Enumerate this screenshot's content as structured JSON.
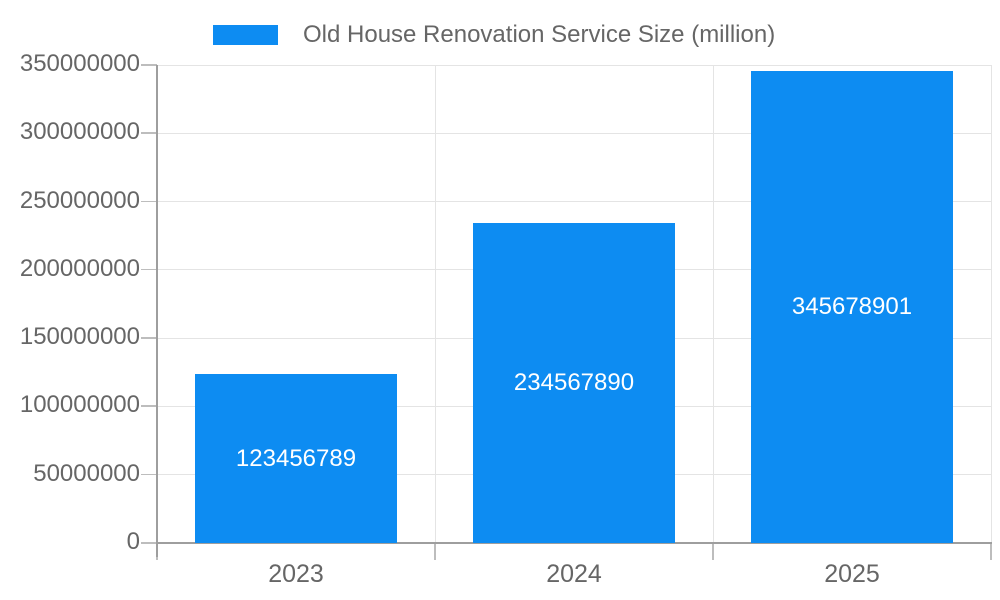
{
  "chart_data": {
    "type": "bar",
    "title": "",
    "legend": {
      "position": "top",
      "label": "Old House Renovation Service Size (million)"
    },
    "categories": [
      "2023",
      "2024",
      "2025"
    ],
    "series": [
      {
        "name": "Old House Renovation Service Size (million)",
        "values": [
          123456789,
          234567890,
          345678901
        ],
        "bar_labels": [
          "123456789",
          "234567890",
          "345678901"
        ]
      }
    ],
    "xlabel": "",
    "ylabel": "",
    "ylim": [
      0,
      350000000
    ],
    "ytick_step": 50000000,
    "ytick_labels": [
      "0",
      "50000000",
      "100000000",
      "150000000",
      "200000000",
      "250000000",
      "300000000",
      "350000000"
    ],
    "grid": true,
    "colors": {
      "bar": "#0D8CF2",
      "bar_label_text": "#ffffff",
      "axis_text": "#666666",
      "legend_text": "#666666",
      "gridline": "#e4e4e4",
      "axis_line": "#9e9e9e",
      "tick": "#bdbdbd",
      "background": "#ffffff"
    }
  }
}
